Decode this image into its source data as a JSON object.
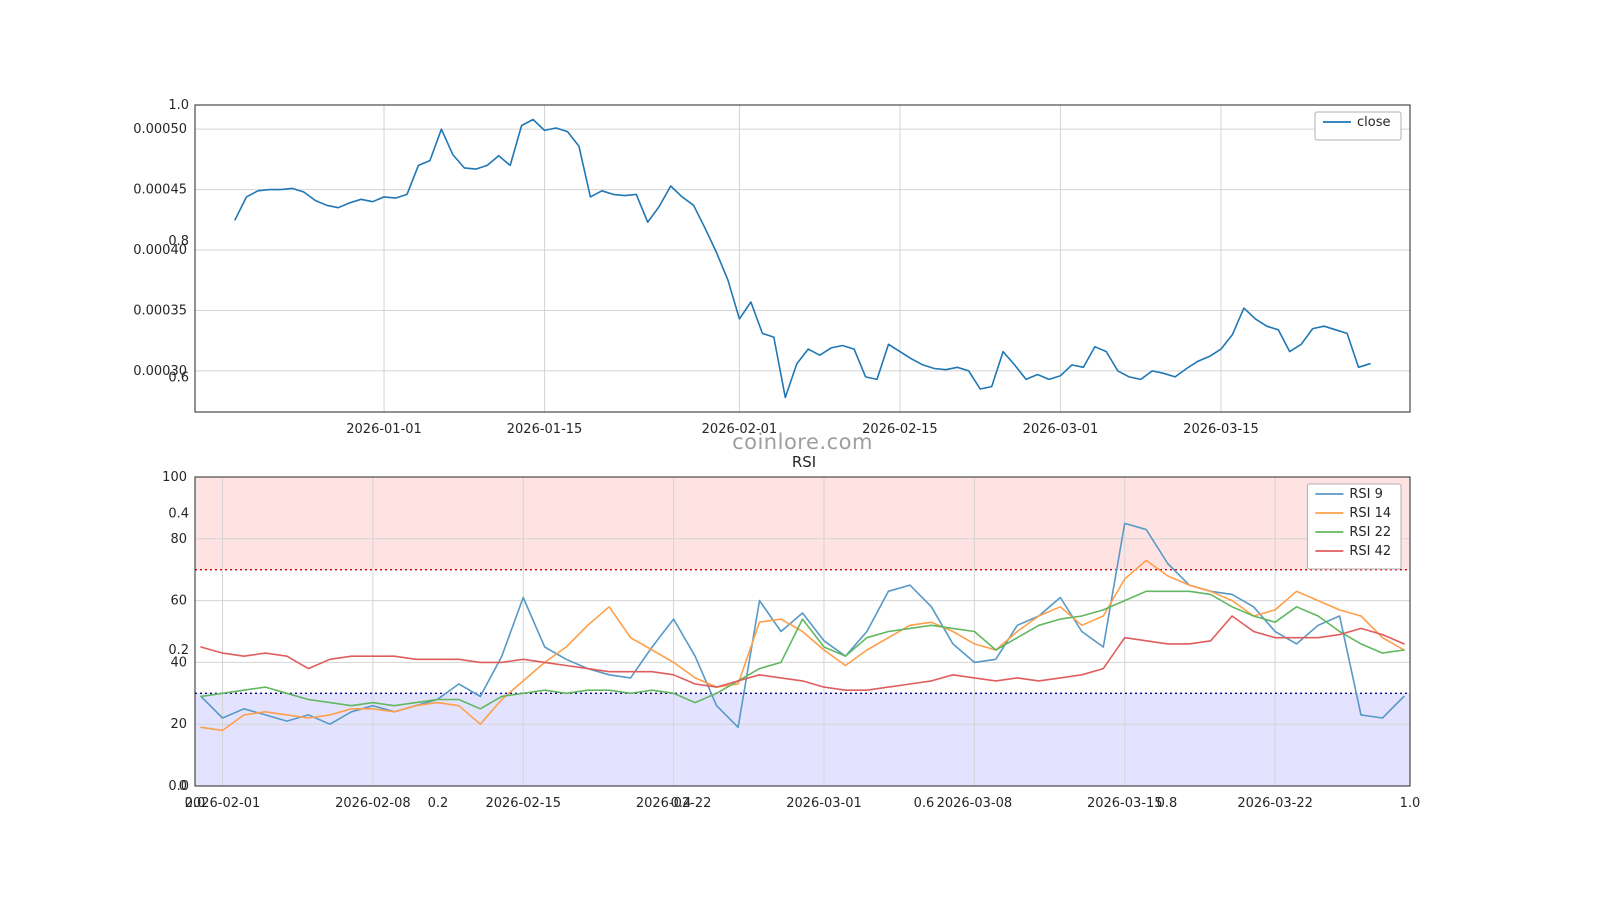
{
  "watermark": "coinlore.com",
  "stray_axis": {
    "ytick_labels": [
      "1.0",
      "0.8",
      "0.6",
      "0.4",
      "0.2",
      "0.0"
    ],
    "xtick_labels": [
      "0.0",
      "0.2",
      "0.4",
      "0.6",
      "0.8",
      "1.0"
    ]
  },
  "chart_data": [
    {
      "type": "line",
      "name": "price",
      "title": "",
      "xlabel": "",
      "ylabel": "",
      "grid": true,
      "legend_position": "upper right",
      "x_start": "2025-12-19",
      "x_end": "2026-03-28",
      "x_freq": "daily",
      "xticks": [
        "2026-01-01",
        "2026-01-15",
        "2026-02-01",
        "2026-02-15",
        "2026-03-01",
        "2026-03-15"
      ],
      "yticks": [
        0.0003,
        0.00035,
        0.0004,
        0.00045,
        0.0005
      ],
      "ytick_labels": [
        "0.00030",
        "0.00035",
        "0.00040",
        "0.00045",
        "0.00050"
      ],
      "ylim": [
        0.000266,
        0.00052
      ],
      "series": [
        {
          "name": "close",
          "color": "#1f77b4",
          "values": [
            0.000425,
            0.000444,
            0.000449,
            0.00045,
            0.00045,
            0.000451,
            0.000448,
            0.000441,
            0.000437,
            0.000435,
            0.000439,
            0.000442,
            0.00044,
            0.000444,
            0.000443,
            0.000446,
            0.00047,
            0.000474,
            0.0005,
            0.000479,
            0.000468,
            0.000467,
            0.00047,
            0.000478,
            0.00047,
            0.000503,
            0.000508,
            0.000499,
            0.000501,
            0.000498,
            0.000486,
            0.000444,
            0.000449,
            0.000446,
            0.000445,
            0.000446,
            0.000423,
            0.000436,
            0.000453,
            0.000444,
            0.000437,
            0.000418,
            0.000398,
            0.000375,
            0.000343,
            0.000357,
            0.000331,
            0.000328,
            0.000278,
            0.000306,
            0.000318,
            0.000313,
            0.000319,
            0.000321,
            0.000318,
            0.000295,
            0.000293,
            0.000322,
            0.000316,
            0.00031,
            0.000305,
            0.000302,
            0.000301,
            0.000303,
            0.0003,
            0.000285,
            0.000287,
            0.000316,
            0.000305,
            0.000293,
            0.000297,
            0.000293,
            0.000296,
            0.000305,
            0.000303,
            0.00032,
            0.000316,
            0.0003,
            0.000295,
            0.000293,
            0.0003,
            0.000298,
            0.000295,
            0.000302,
            0.000308,
            0.000312,
            0.000318,
            0.00033,
            0.000352,
            0.000343,
            0.000337,
            0.000334,
            0.000316,
            0.000322,
            0.000335,
            0.000337,
            0.000334,
            0.000331,
            0.000303,
            0.000306
          ]
        }
      ]
    },
    {
      "type": "line",
      "name": "rsi",
      "title": "RSI",
      "xlabel": "",
      "ylabel": "",
      "grid": true,
      "legend_position": "upper right",
      "x_start": "2026-01-31",
      "x_end": "2026-03-28",
      "x_freq": "daily",
      "xticks": [
        "2026-02-01",
        "2026-02-08",
        "2026-02-15",
        "2026-02-22",
        "2026-03-01",
        "2026-03-08",
        "2026-03-15",
        "2026-03-22"
      ],
      "yticks": [
        0,
        20,
        40,
        60,
        80,
        100
      ],
      "ytick_labels": [
        "0",
        "20",
        "40",
        "60",
        "80",
        "100"
      ],
      "ylim": [
        0,
        100
      ],
      "bands": [
        {
          "from": 70,
          "to": 100,
          "color": "rgba(255,0,0,0.11)",
          "meaning": "overbought"
        },
        {
          "from": 0,
          "to": 30,
          "color": "rgba(0,0,255,0.11)",
          "meaning": "oversold"
        }
      ],
      "hlines": [
        {
          "y": 70,
          "color": "#cc0000",
          "style": "dotted"
        },
        {
          "y": 30,
          "color": "#00008b",
          "style": "dotted"
        }
      ],
      "series": [
        {
          "name": "RSI 9",
          "color": "#5799C7",
          "values": [
            29,
            22,
            25,
            23,
            21,
            23,
            20,
            24,
            26,
            24,
            26,
            28,
            33,
            29,
            42,
            61,
            45,
            41,
            38,
            36,
            35,
            45,
            54,
            42,
            26,
            19,
            60,
            50,
            56,
            47,
            42,
            50,
            63,
            65,
            58,
            46,
            40,
            41,
            52,
            55,
            61,
            50,
            45,
            85,
            83,
            72,
            65,
            63,
            62,
            58,
            50,
            46,
            52,
            55,
            23,
            22,
            29
          ]
        },
        {
          "name": "RSI 14",
          "color": "#FF9F4A",
          "values": [
            19,
            18,
            23,
            24,
            23,
            22,
            23,
            25,
            25,
            24,
            26,
            27,
            26,
            20,
            28,
            34,
            40,
            45,
            52,
            58,
            48,
            44,
            40,
            35,
            32,
            33,
            53,
            54,
            50,
            44,
            39,
            44,
            48,
            52,
            53,
            50,
            46,
            44,
            50,
            55,
            58,
            52,
            55,
            67,
            73,
            68,
            65,
            63,
            60,
            55,
            57,
            63,
            60,
            57,
            55,
            48,
            44
          ]
        },
        {
          "name": "RSI 22",
          "color": "#61B861",
          "values": [
            29,
            30,
            31,
            32,
            30,
            28,
            27,
            26,
            27,
            26,
            27,
            28,
            28,
            25,
            29,
            30,
            31,
            30,
            31,
            31,
            30,
            31,
            30,
            27,
            30,
            34,
            38,
            40,
            54,
            45,
            42,
            48,
            50,
            51,
            52,
            51,
            50,
            44,
            48,
            52,
            54,
            55,
            57,
            60,
            63,
            63,
            63,
            62,
            58,
            55,
            53,
            58,
            55,
            50,
            46,
            43,
            44
          ]
        },
        {
          "name": "RSI 42",
          "color": "#E05D5E",
          "values": [
            45,
            43,
            42,
            43,
            42,
            38,
            41,
            42,
            42,
            42,
            41,
            41,
            41,
            40,
            40,
            41,
            40,
            39,
            38,
            37,
            37,
            37,
            36,
            33,
            32,
            34,
            36,
            35,
            34,
            32,
            31,
            31,
            32,
            33,
            34,
            36,
            35,
            34,
            35,
            34,
            35,
            36,
            38,
            48,
            47,
            46,
            46,
            47,
            55,
            50,
            48,
            48,
            48,
            49,
            51,
            49,
            46
          ]
        }
      ]
    }
  ]
}
